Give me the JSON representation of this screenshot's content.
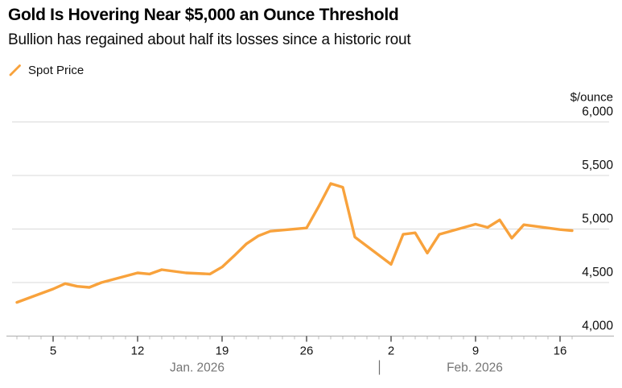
{
  "header": {
    "title": "Gold Is Hovering Near $5,000 an Ounce Threshold",
    "subtitle": "Bullion has regained about half its losses since a historic rout",
    "legend": {
      "label": "Spot Price",
      "color": "#F8A23C"
    },
    "unit_label": "$/ounce"
  },
  "chart_data": {
    "type": "line",
    "title": "Gold Is Hovering Near $5,000 an Ounce Threshold",
    "subtitle": "Bullion has regained about half its losses since a historic rout",
    "unit_label": "$/ounce",
    "legend_position": "top-left",
    "grid": "horizontal",
    "ylim": [
      4000,
      6000
    ],
    "yticks": [
      4000,
      4500,
      5000,
      5500,
      6000
    ],
    "x_axis": {
      "start_date": "Jan 2, 2026",
      "end_date": "Feb 17, 2026",
      "total_days": 47,
      "major_tick_labels": [
        "5",
        "12",
        "19",
        "26",
        "2",
        "9",
        "16"
      ],
      "major_tick_day_offsets": [
        3,
        10,
        17,
        24,
        31,
        38,
        45
      ],
      "month_labels": [
        "Jan. 2026",
        "Feb. 2026"
      ],
      "month_separator_day_offset": 30
    },
    "colors": {
      "line": "#F8A23C",
      "gridline": "#D9D9D9",
      "axis_line": "#ACACAC",
      "tick_major": "#3A3A3A",
      "tick_minor": "#BBBBBB",
      "month_separator": "#6E6E6E"
    },
    "series": [
      {
        "name": "Spot Price",
        "color": "#F8A23C",
        "points": [
          {
            "date": "Jan 2",
            "day": 0,
            "value": 4315
          },
          {
            "date": "Jan 5",
            "day": 3,
            "value": 4440
          },
          {
            "date": "Jan 6",
            "day": 4,
            "value": 4490
          },
          {
            "date": "Jan 7",
            "day": 5,
            "value": 4465
          },
          {
            "date": "Jan 8",
            "day": 6,
            "value": 4455
          },
          {
            "date": "Jan 9",
            "day": 7,
            "value": 4500
          },
          {
            "date": "Jan 12",
            "day": 10,
            "value": 4590
          },
          {
            "date": "Jan 13",
            "day": 11,
            "value": 4580
          },
          {
            "date": "Jan 14",
            "day": 12,
            "value": 4620
          },
          {
            "date": "Jan 15",
            "day": 13,
            "value": 4605
          },
          {
            "date": "Jan 16",
            "day": 14,
            "value": 4590
          },
          {
            "date": "Jan 18",
            "day": 16,
            "value": 4580
          },
          {
            "date": "Jan 19",
            "day": 17,
            "value": 4645
          },
          {
            "date": "Jan 20",
            "day": 18,
            "value": 4750
          },
          {
            "date": "Jan 21",
            "day": 19,
            "value": 4860
          },
          {
            "date": "Jan 22",
            "day": 20,
            "value": 4935
          },
          {
            "date": "Jan 23",
            "day": 21,
            "value": 4980
          },
          {
            "date": "Jan 26",
            "day": 24,
            "value": 5010
          },
          {
            "date": "Jan 27",
            "day": 25,
            "value": 5210
          },
          {
            "date": "Jan 28",
            "day": 26,
            "value": 5425
          },
          {
            "date": "Jan 29",
            "day": 27,
            "value": 5390
          },
          {
            "date": "Jan 30",
            "day": 28,
            "value": 4925
          },
          {
            "date": "Feb 2",
            "day": 31,
            "value": 4670
          },
          {
            "date": "Feb 3",
            "day": 32,
            "value": 4950
          },
          {
            "date": "Feb 4",
            "day": 33,
            "value": 4965
          },
          {
            "date": "Feb 5",
            "day": 34,
            "value": 4775
          },
          {
            "date": "Feb 6",
            "day": 35,
            "value": 4950
          },
          {
            "date": "Feb 9",
            "day": 38,
            "value": 5045
          },
          {
            "date": "Feb 10",
            "day": 39,
            "value": 5015
          },
          {
            "date": "Feb 11",
            "day": 40,
            "value": 5085
          },
          {
            "date": "Feb 12",
            "day": 41,
            "value": 4915
          },
          {
            "date": "Feb 13",
            "day": 42,
            "value": 5040
          },
          {
            "date": "Feb 16",
            "day": 45,
            "value": 4995
          },
          {
            "date": "Feb 17",
            "day": 46,
            "value": 4985
          }
        ]
      }
    ]
  }
}
